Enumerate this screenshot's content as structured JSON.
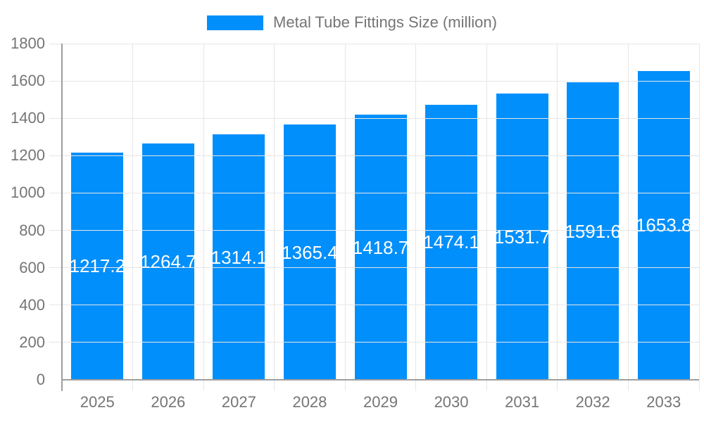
{
  "legend": {
    "label": "Metal Tube Fittings Size (million)",
    "swatch_color": "#008FFB",
    "position": "top"
  },
  "chart_data": {
    "type": "bar",
    "title": "Metal Tube Fittings Size (million)",
    "series": [
      {
        "name": "Metal Tube Fittings Size (million)",
        "values": [
          1217.2,
          1264.7,
          1314.1,
          1365.4,
          1418.7,
          1474.1,
          1531.7,
          1591.6,
          1653.8
        ]
      }
    ],
    "categories": [
      "2025",
      "2026",
      "2027",
      "2028",
      "2029",
      "2030",
      "2031",
      "2032",
      "2033"
    ],
    "values": [
      1217.2,
      1264.7,
      1314.1,
      1365.4,
      1418.7,
      1474.1,
      1531.7,
      1591.6,
      1653.8
    ],
    "bar_labels": [
      "1217.2",
      "1264.7",
      "1314.1",
      "1365.4",
      "1418.7",
      "1474.1",
      "1531.7",
      "1591.6",
      "1653.8"
    ],
    "xlabel": "",
    "ylabel": "",
    "ylim": [
      0,
      1800
    ],
    "yticks": [
      0,
      200,
      400,
      600,
      800,
      1000,
      1200,
      1400,
      1600,
      1800
    ],
    "grid": true,
    "legend_position": "top",
    "colors": {
      "bar": "#008FFB",
      "bar_label": "#ffffff",
      "axis_text": "#757575",
      "gridline": "#e6e6e6",
      "axis_line": "#9e9e9e",
      "background": "#ffffff"
    }
  }
}
